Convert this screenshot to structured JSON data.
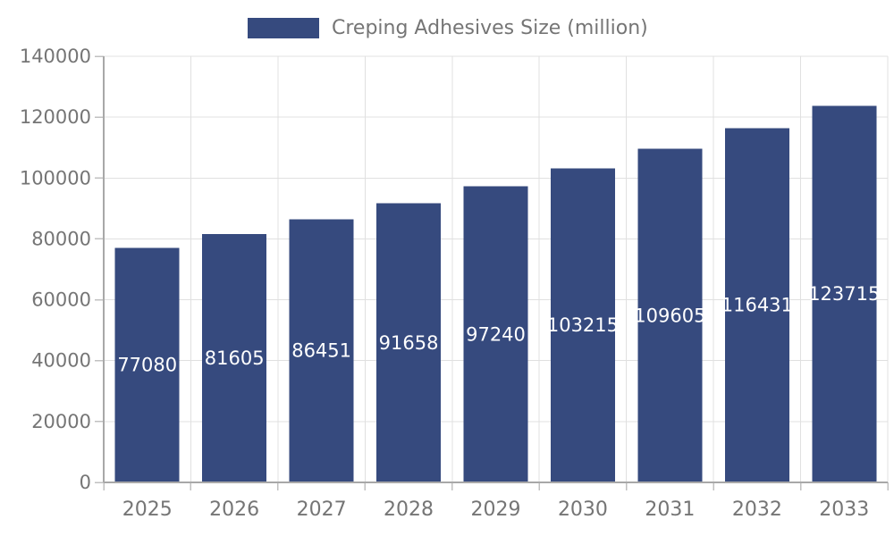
{
  "legend": {
    "items": [
      {
        "label": "Creping Adhesives Size (million)",
        "color": "#364a7e"
      }
    ]
  },
  "chart_data": {
    "type": "bar",
    "title": "Creping Adhesives Size (million)",
    "categories": [
      "2025",
      "2026",
      "2027",
      "2028",
      "2029",
      "2030",
      "2031",
      "2032",
      "2033"
    ],
    "series": [
      {
        "name": "Creping Adhesives Size (million)",
        "values": [
          77080,
          81605,
          86451,
          91658,
          97240,
          103215,
          109605,
          116431,
          123715
        ],
        "color": "#364a7e"
      }
    ],
    "xlabel": "",
    "ylabel": "",
    "ylim": [
      0,
      140000
    ],
    "yticks": [
      0,
      20000,
      40000,
      60000,
      80000,
      100000,
      120000,
      140000
    ],
    "grid": true,
    "legend_position": "top",
    "value_label_position": "inside-center",
    "value_label_color": "#ffffff"
  },
  "colors": {
    "background": "#ffffff",
    "bar": "#364a7e",
    "grid_line": "#e0e0e0",
    "axis_line": "#a8a8a8",
    "tick_mark": "#c0c0c0",
    "axis_text": "#757575",
    "value_text": "#ffffff"
  }
}
